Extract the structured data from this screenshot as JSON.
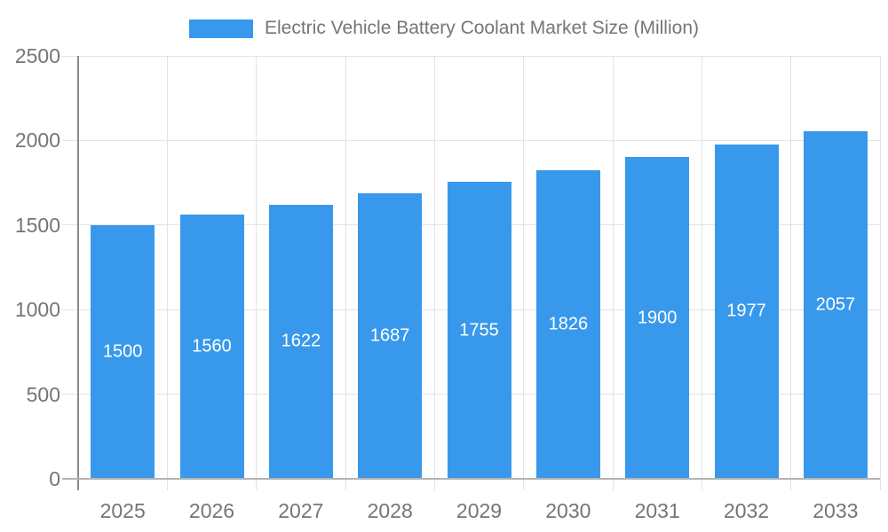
{
  "page": {
    "background": "#ffffff"
  },
  "legend": {
    "label": "Electric Vehicle Battery Coolant Market Size (Million)",
    "position": "top"
  },
  "chart_data": {
    "type": "bar",
    "title": "Electric Vehicle Battery Coolant Market Size (Million)",
    "categories": [
      "2025",
      "2026",
      "2027",
      "2028",
      "2029",
      "2030",
      "2031",
      "2032",
      "2033"
    ],
    "values": [
      1500,
      1560,
      1622,
      1687,
      1755,
      1826,
      1900,
      1977,
      2057
    ],
    "series": [
      {
        "name": "Electric Vehicle Battery Coolant Market Size (Million)",
        "values": [
          1500,
          1560,
          1622,
          1687,
          1755,
          1826,
          1900,
          1977,
          2057
        ]
      }
    ],
    "xlabel": "",
    "ylabel": "",
    "ylim": [
      0,
      2500
    ],
    "ytick_interval": 500,
    "yticks": [
      0,
      500,
      1000,
      1500,
      2000,
      2500
    ],
    "grid": true,
    "legend_position": "top",
    "value_labels": "inside-center",
    "colors": {
      "bar": "#3899EC",
      "value_label": "#ffffff",
      "axis_text": "#757575",
      "gridline": "#e3e3e3",
      "y_axis_line": "#8c8c8c",
      "x_axis_line": "#b3b3b3"
    }
  }
}
